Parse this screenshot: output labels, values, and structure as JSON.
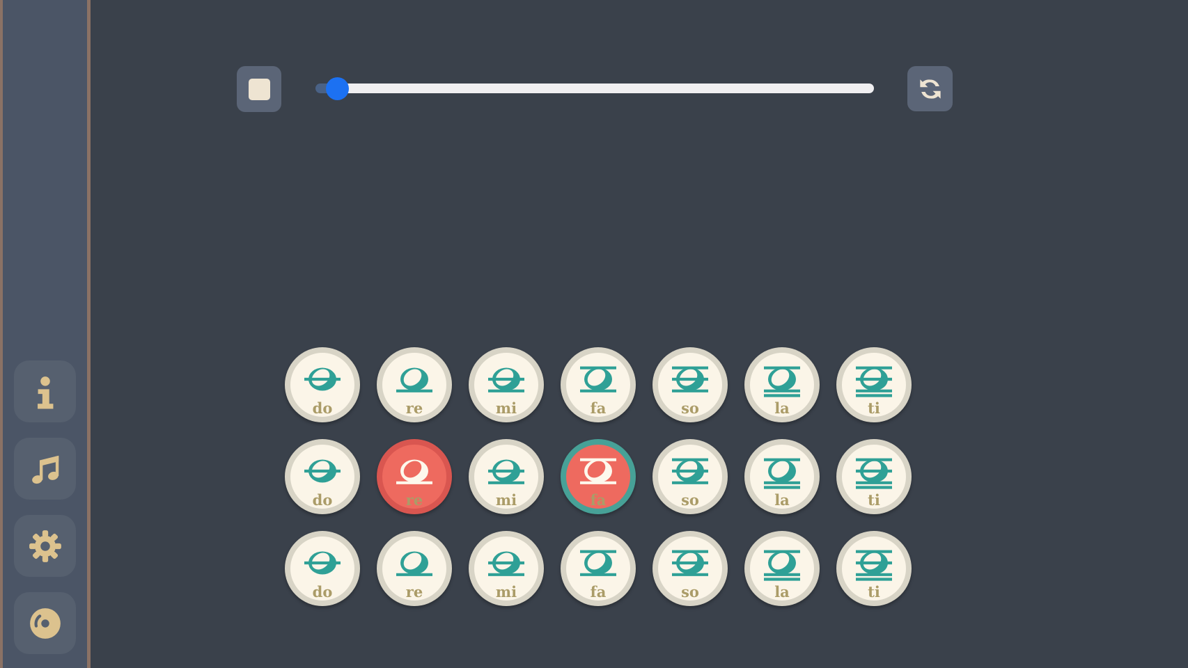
{
  "colors": {
    "bg_main": "#3a414b",
    "bg_sidebar": "#4b5566",
    "sidebar_border": "#8b7265",
    "bg_sidebar_btn": "#56606f",
    "icon_tan": "#dcc28e",
    "bg_ctrl_btn": "#5b6577",
    "cream": "#eee4d2",
    "slider_track": "#f0eff1",
    "accent_blue": "#1c71f2",
    "slider_fill": "#4a6286",
    "ring_beige": "#d8d4c6",
    "btn_cream": "#fbf5e8",
    "teal": "#2fa096",
    "label_tan": "#ab9c68",
    "red": "#ee6a5f",
    "red_ring": "#d95650",
    "teal_ring": "#47a197",
    "glyph_on_red": "#fdf8ec"
  },
  "sidebar": {
    "buttons": [
      {
        "id": "info",
        "icon": "info-icon"
      },
      {
        "id": "music",
        "icon": "music-note-icon"
      },
      {
        "id": "settings",
        "icon": "gear-icon"
      },
      {
        "id": "audio",
        "icon": "disc-icon"
      }
    ]
  },
  "transport": {
    "stop_button": {
      "icon": "stop-icon"
    },
    "progress_slider": {
      "min": 0,
      "max": 100,
      "value": 2
    },
    "replay_button": {
      "icon": "refresh-icon"
    }
  },
  "board": {
    "syllable_lines": {
      "do": [
        "middle"
      ],
      "re": [
        "bottom"
      ],
      "mi": [
        "middle",
        "bottom"
      ],
      "fa": [
        "top",
        "bottom"
      ],
      "so": [
        "top",
        "middle",
        "bottom"
      ],
      "la": [
        "top",
        "bottom",
        "bottom2"
      ],
      "ti": [
        "top",
        "middle",
        "bottom",
        "bottom2"
      ]
    },
    "rows": [
      {
        "notes": [
          {
            "syllable": "do",
            "state": "default"
          },
          {
            "syllable": "re",
            "state": "default"
          },
          {
            "syllable": "mi",
            "state": "default"
          },
          {
            "syllable": "fa",
            "state": "default"
          },
          {
            "syllable": "so",
            "state": "default"
          },
          {
            "syllable": "la",
            "state": "default"
          },
          {
            "syllable": "ti",
            "state": "default"
          }
        ]
      },
      {
        "notes": [
          {
            "syllable": "do",
            "state": "default"
          },
          {
            "syllable": "re",
            "state": "red"
          },
          {
            "syllable": "mi",
            "state": "default"
          },
          {
            "syllable": "fa",
            "state": "red-teal"
          },
          {
            "syllable": "so",
            "state": "default"
          },
          {
            "syllable": "la",
            "state": "default"
          },
          {
            "syllable": "ti",
            "state": "default"
          }
        ]
      },
      {
        "notes": [
          {
            "syllable": "do",
            "state": "default"
          },
          {
            "syllable": "re",
            "state": "default"
          },
          {
            "syllable": "mi",
            "state": "default"
          },
          {
            "syllable": "fa",
            "state": "default"
          },
          {
            "syllable": "so",
            "state": "default"
          },
          {
            "syllable": "la",
            "state": "default"
          },
          {
            "syllable": "ti",
            "state": "default"
          }
        ]
      }
    ]
  }
}
